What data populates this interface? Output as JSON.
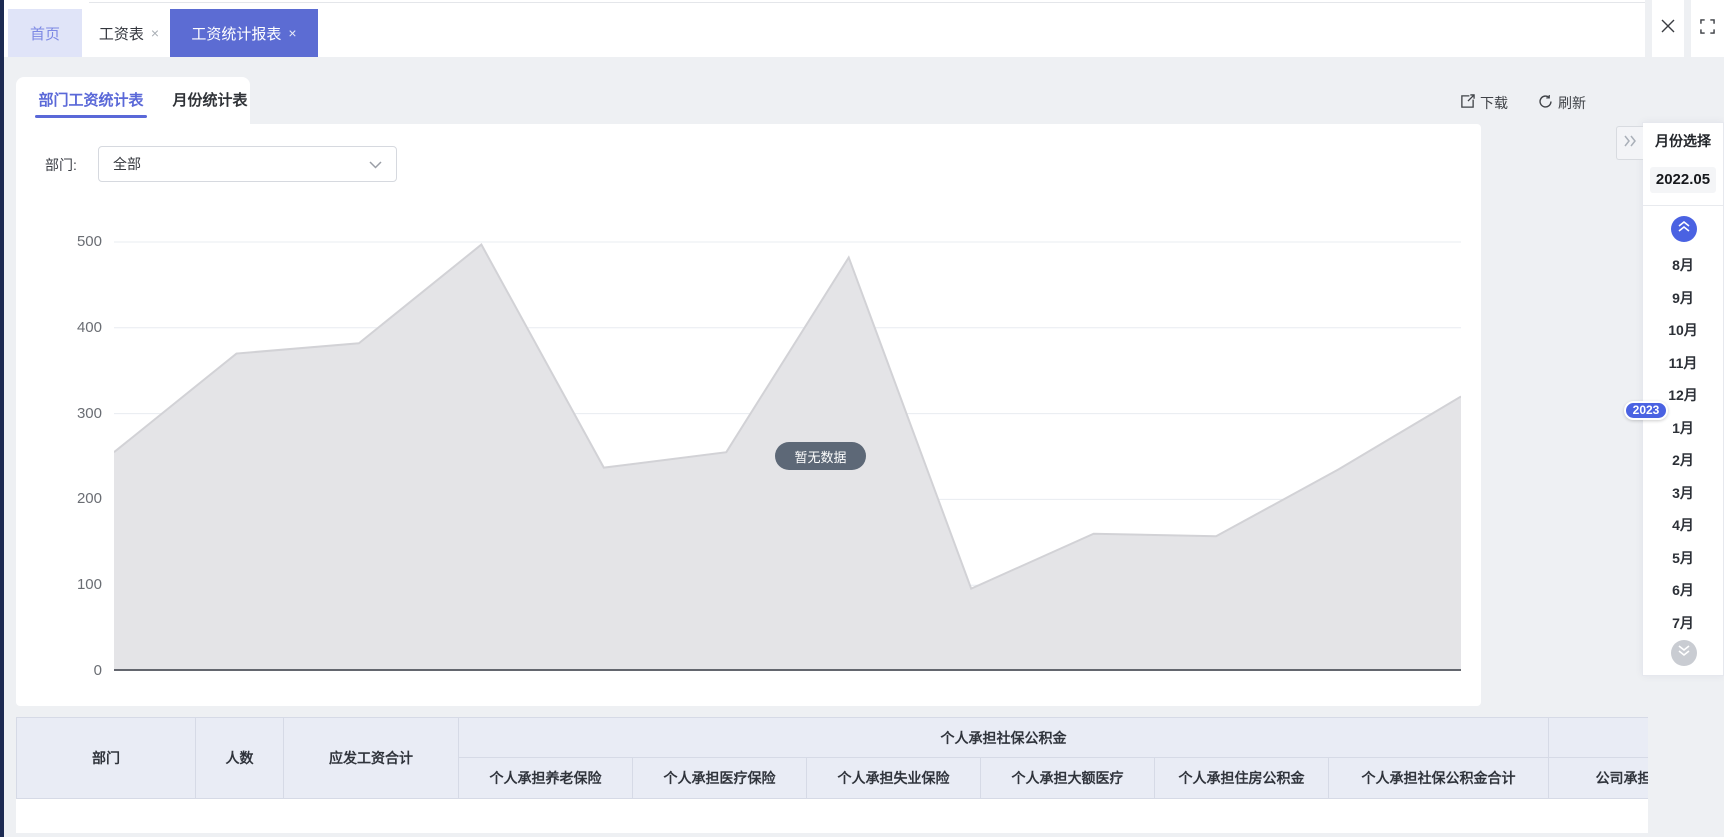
{
  "app": {
    "top_tabs": [
      {
        "label": "首页",
        "closable": false
      },
      {
        "label": "工资表",
        "closable": true,
        "close_glyph": "×"
      },
      {
        "label": "工资统计报表",
        "closable": true,
        "close_glyph": "×"
      }
    ]
  },
  "subtabs": {
    "active": "部门工资统计表",
    "inactive": "月份统计表"
  },
  "toolbar": {
    "download": "下载",
    "refresh": "刷新"
  },
  "filter": {
    "label": "部门:",
    "value": "全部"
  },
  "chart_data": {
    "type": "area",
    "title": "",
    "xlabel": "",
    "ylabel": "",
    "x_tick_labels": [],
    "yticks": [
      0,
      100,
      200,
      300,
      400,
      500
    ],
    "ylim": [
      0,
      500
    ],
    "grid": "horizontal",
    "values": [
      255,
      370,
      382,
      497,
      237,
      255,
      482,
      96,
      160,
      157,
      235,
      320
    ],
    "area_color": "#e4e4e7",
    "line_color": "#d2d2d6",
    "axis_color": "#63666e",
    "gridline_color": "#e8ecf1",
    "no_data_label": "暂无数据"
  },
  "table": {
    "headers": {
      "department": "部门",
      "headcount": "人数",
      "gross_total": "应发工资合计",
      "personal_group": "个人承担社保公积金",
      "company_group": "公司承担"
    },
    "sub_headers": [
      "个人承担养老保险",
      "个人承担医疗保险",
      "个人承担失业保险",
      "个人承担大额医疗",
      "个人承担住房公积金",
      "个人承担社保公积金合计"
    ],
    "rows": []
  },
  "month_panel": {
    "title": "月份选择",
    "current": "2022.05",
    "year_badge": "2023",
    "months": [
      "8月",
      "9月",
      "10月",
      "11月",
      "12月",
      "1月",
      "2月",
      "3月",
      "4月",
      "5月",
      "6月",
      "7月"
    ]
  },
  "colors": {
    "accent": "#5a68d8",
    "active_tab_bg": "#5c6cd3",
    "home_tab_bg": "#e0e4f8",
    "blue_button": "#4a62e2",
    "tooltip_bg": "#5d6877",
    "table_header_bg": "#e9ecf5",
    "nav_rail": "#1c2a52"
  }
}
